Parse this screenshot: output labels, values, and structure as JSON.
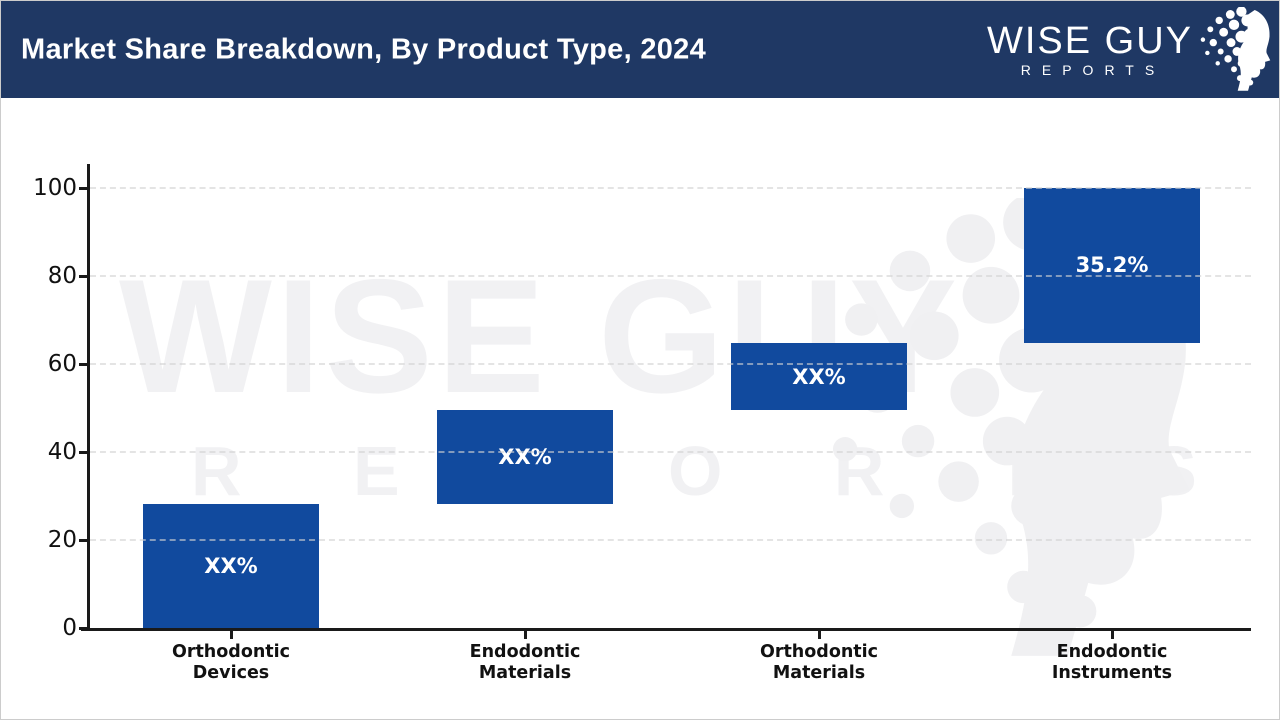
{
  "header": {
    "title": "Market Share Breakdown, By Product Type, 2024",
    "logo": {
      "line1": "WISE GUY",
      "line2": "REPORTS"
    }
  },
  "watermark": {
    "line1": "WISE GUY",
    "line2": "R E P O R T S"
  },
  "colors": {
    "header_bg": "#1f3864",
    "bar": "#114a9e",
    "axis": "#1a1a1a",
    "grid": "#dcdcdc",
    "watermark": "#f1f1f3",
    "bar_value_text": "#ffffff"
  },
  "chart_data": {
    "type": "bar",
    "subtype": "waterfall",
    "title": "Market Share Breakdown, By Product Type, 2024",
    "categories": [
      "Orthodontic Devices",
      "Endodontic Materials",
      "Orthodontic Materials",
      "Endodontic Instruments"
    ],
    "bars": [
      {
        "category": "Orthodontic Devices",
        "start": 0,
        "end": 28.2,
        "value_label": "XX%"
      },
      {
        "category": "Endodontic Materials",
        "start": 28.2,
        "end": 49.5,
        "value_label": "XX%"
      },
      {
        "category": "Orthodontic Materials",
        "start": 49.5,
        "end": 64.8,
        "value_label": "XX%"
      },
      {
        "category": "Endodontic Instruments",
        "start": 64.8,
        "end": 100,
        "value_label": "35.2%"
      }
    ],
    "yticks": [
      0,
      20,
      40,
      60,
      80,
      100
    ],
    "ylim": [
      0,
      105
    ],
    "xlabel": "",
    "ylabel": "",
    "grid": "horizontal-dashed",
    "legend": "none",
    "bar_color": "#114a9e"
  }
}
